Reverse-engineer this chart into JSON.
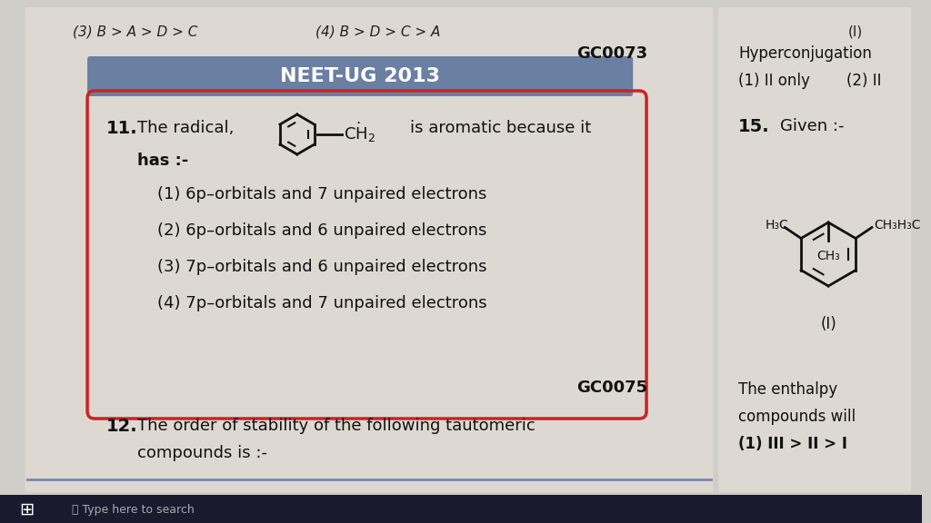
{
  "background_color": "#d0cec8",
  "left_panel_bg": "#e8e4de",
  "header_bg": "#6b7fa3",
  "header_text": "NEET-UG 2013",
  "header_text_color": "#ffffff",
  "gc0073_text": "GC0073",
  "gc0075_text": "GC0075",
  "top_left_text": "(3) B > A > D > C",
  "top_middle_text": "(4) B > D > C > A",
  "top_right_text": "(I)",
  "q11_number": "11.",
  "q11_text": "The radical,",
  "q11_suffix": "is aromatic because it",
  "q11_has": "has :-",
  "options": [
    "(1) 6p–orbitals and 7 unpaired electrons",
    "(2) 6p–orbitals and 6 unpaired electrons",
    "(3) 7p–orbitals and 6 unpaired electrons",
    "(4) 7p–orbitals and 7 unpaired electrons"
  ],
  "q12_number": "12.",
  "q12_text": "The order of stability of the following tautomeric",
  "q12_text2": "compounds is :-",
  "q15_number": "15.",
  "q15_text": "Given :-",
  "right_top": "Hyperconjugation",
  "right_options": [
    "(1) II only",
    "(2) II"
  ],
  "right_bottom": "The enthalpy",
  "right_bottom2": "compounds will",
  "right_bottom3": "(1) III > II > I",
  "ch3_label1": "H₃C",
  "ch3_label2": "CH₃H₃C",
  "ch3_label3": "CH₃",
  "ch3_label4": "(I)"
}
